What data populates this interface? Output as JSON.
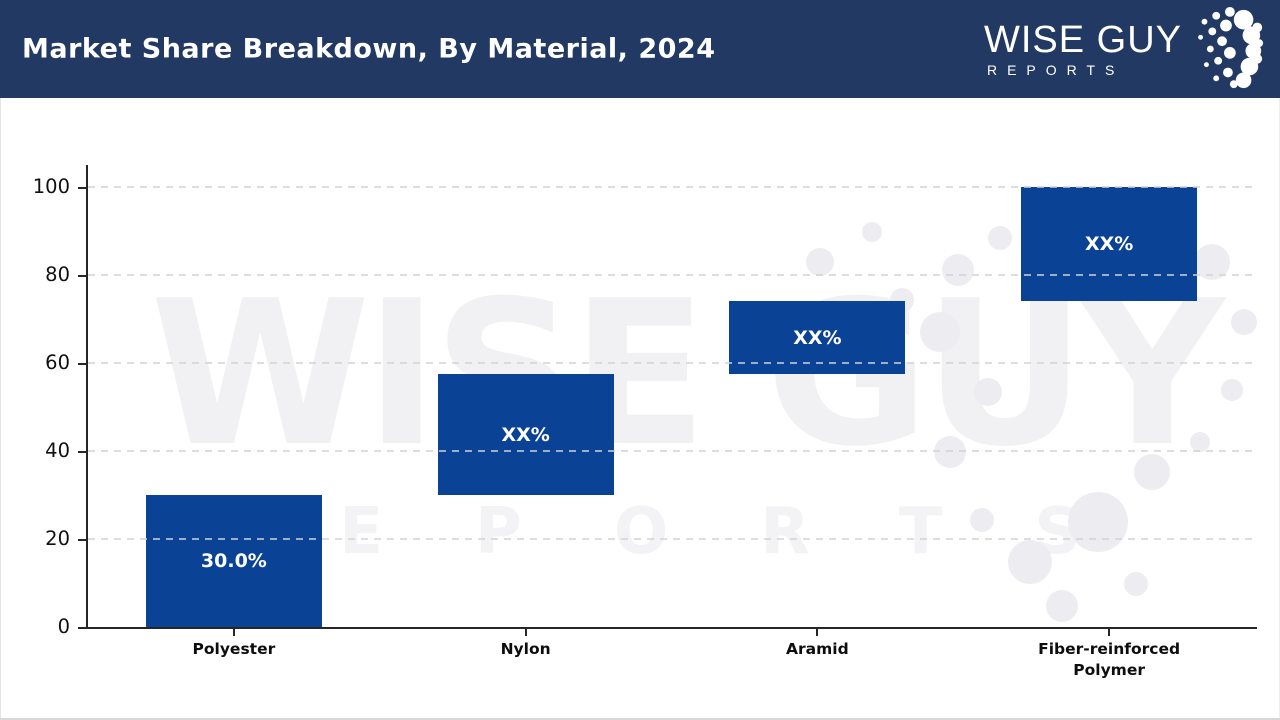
{
  "header": {
    "title": "Market Share Breakdown, By Material, 2024",
    "logo": {
      "brand": "WISE GUY",
      "sub": "REPORTS"
    }
  },
  "watermark": {
    "brand": "WISE GUY",
    "sub": "REPORTS"
  },
  "chart_data": {
    "type": "bar",
    "subtype": "waterfall",
    "title": "Market Share Breakdown, By Material, 2024",
    "categories": [
      "Polyester",
      "Nylon",
      "Aramid",
      "Fiber-reinforced Polymer"
    ],
    "bars": [
      {
        "category": "Polyester",
        "start": 0,
        "end": 30,
        "label": "30.0%"
      },
      {
        "category": "Nylon",
        "start": 30,
        "end": 57.5,
        "label": "XX%"
      },
      {
        "category": "Aramid",
        "start": 57.5,
        "end": 74,
        "label": "XX%"
      },
      {
        "category": "Fiber-reinforced Polymer",
        "start": 74,
        "end": 100,
        "label": "XX%"
      }
    ],
    "xlabel": "",
    "ylabel": "",
    "ylim": [
      0,
      100
    ],
    "yticks": [
      0,
      20,
      40,
      60,
      80,
      100
    ],
    "grid": "horizontal-dashed",
    "legend": "none",
    "colors": {
      "bar": "#0a4296",
      "header": "#223a63",
      "grid": "#d9d9d9",
      "axis": "#262626",
      "bar_label": "#ffffff",
      "watermark": "#f1f1f4"
    }
  }
}
